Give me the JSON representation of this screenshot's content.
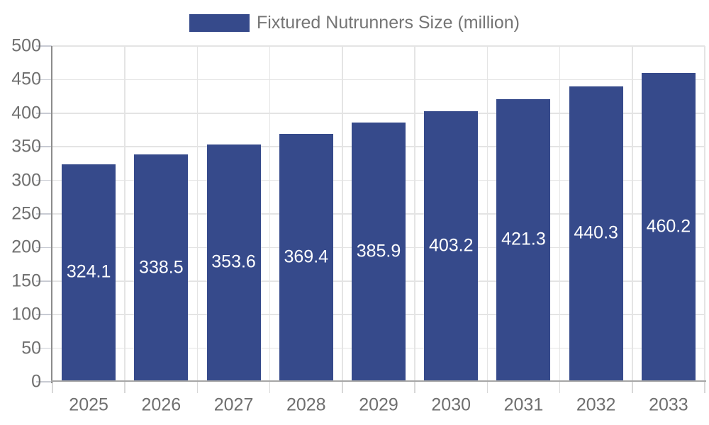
{
  "chart_data": {
    "type": "bar",
    "title": "",
    "legend": {
      "label": "Fixtured Nutrunners Size (million)",
      "position": "top"
    },
    "categories": [
      "2025",
      "2026",
      "2027",
      "2028",
      "2029",
      "2030",
      "2031",
      "2032",
      "2033"
    ],
    "series": [
      {
        "name": "Fixtured Nutrunners Size (million)",
        "values": [
          324.1,
          338.5,
          353.6,
          369.4,
          385.9,
          403.2,
          421.3,
          440.3,
          460.2
        ]
      }
    ],
    "value_labels": {
      "visible": true,
      "position": "inside-center",
      "color": "#ffffff"
    },
    "xlabel": "",
    "ylabel": "",
    "ylim": [
      0,
      500
    ],
    "ytick_step": 50,
    "ytick_labels": [
      "0",
      "50",
      "100",
      "150",
      "200",
      "250",
      "300",
      "350",
      "400",
      "450",
      "500"
    ],
    "grid": {
      "horizontal": true,
      "vertical": true
    }
  },
  "style": {
    "bar_color": "#364a8b",
    "legend_text_color": "#757575",
    "axis_label_color": "#6f6f6f",
    "grid_color": "#e4e4e4",
    "y_axis_line_color": "#8c8c8c",
    "x_axis_line_color": "#a6a6a6"
  }
}
